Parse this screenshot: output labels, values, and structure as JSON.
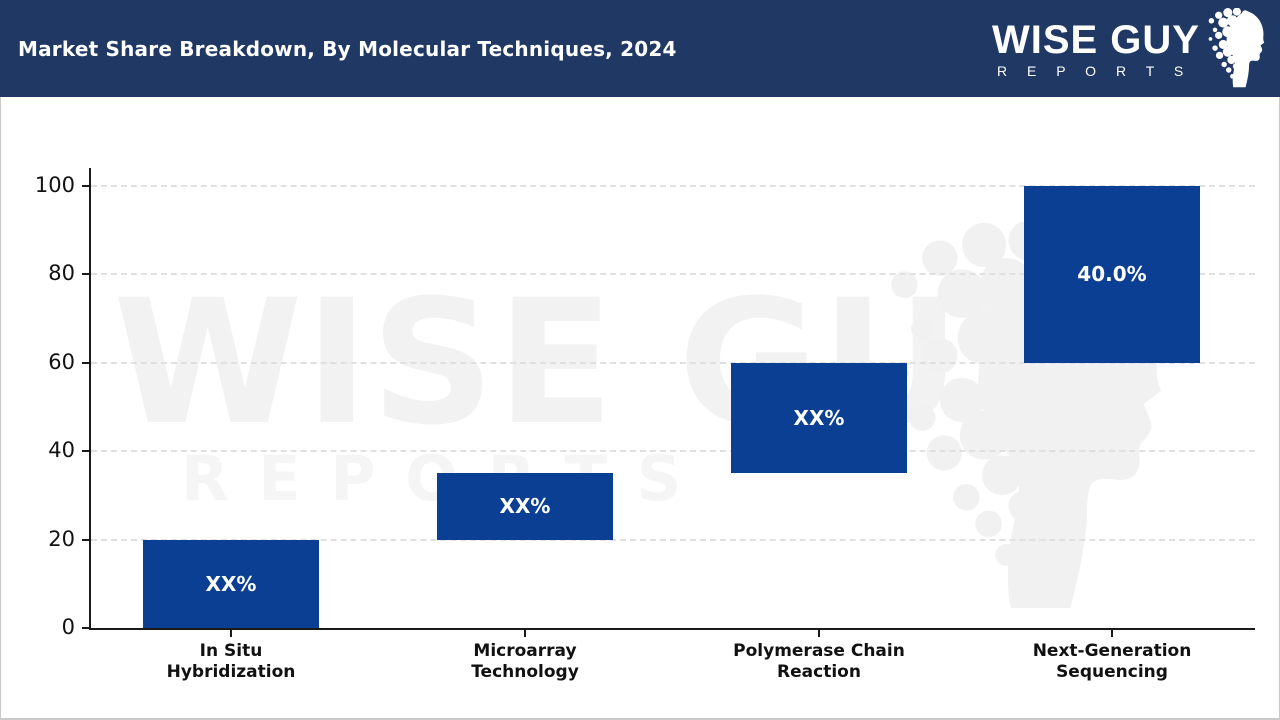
{
  "header": {
    "title": "Market Share Breakdown, By Molecular Techniques, 2024",
    "bg_color": "#1f3864",
    "logo": {
      "name": "WISE GUY",
      "subtitle": "R E P O R T S",
      "icon": "wiseguy-head-icon",
      "color": "#ffffff"
    }
  },
  "watermark": {
    "line1": "WISE GUY",
    "line2": "R E P O R T S",
    "icon": "wiseguy-head-icon",
    "color": "#f2f2f2"
  },
  "chart_data": {
    "type": "bar",
    "subtype": "waterfall",
    "title": "Market Share Breakdown, By Molecular Techniques, 2024",
    "categories": [
      [
        "In Situ",
        "Hybridization"
      ],
      [
        "Microarray",
        "Technology"
      ],
      [
        "Polymerase Chain",
        "Reaction"
      ],
      [
        "Next-Generation",
        "Sequencing"
      ]
    ],
    "segments": [
      {
        "category": "In Situ Hybridization",
        "start": 0,
        "end": 20,
        "value": 20,
        "label": "XX%"
      },
      {
        "category": "Microarray Technology",
        "start": 20,
        "end": 35,
        "value": 15,
        "label": "XX%"
      },
      {
        "category": "Polymerase Chain Reaction",
        "start": 35,
        "end": 60,
        "value": 25,
        "label": "XX%"
      },
      {
        "category": "Next-Generation Sequencing",
        "start": 60,
        "end": 100,
        "value": 40,
        "label": "40.0%"
      }
    ],
    "xlabel": "",
    "ylabel": "",
    "ylim": [
      0,
      100
    ],
    "yticks": [
      0,
      20,
      40,
      60,
      80,
      100
    ],
    "grid": "horizontal-dashed",
    "legend": null,
    "bar_color": "#0b3f93",
    "bar_label_color": "#ffffff",
    "axis_color": "#1a1a1a",
    "grid_color": "#e0e0e0"
  }
}
